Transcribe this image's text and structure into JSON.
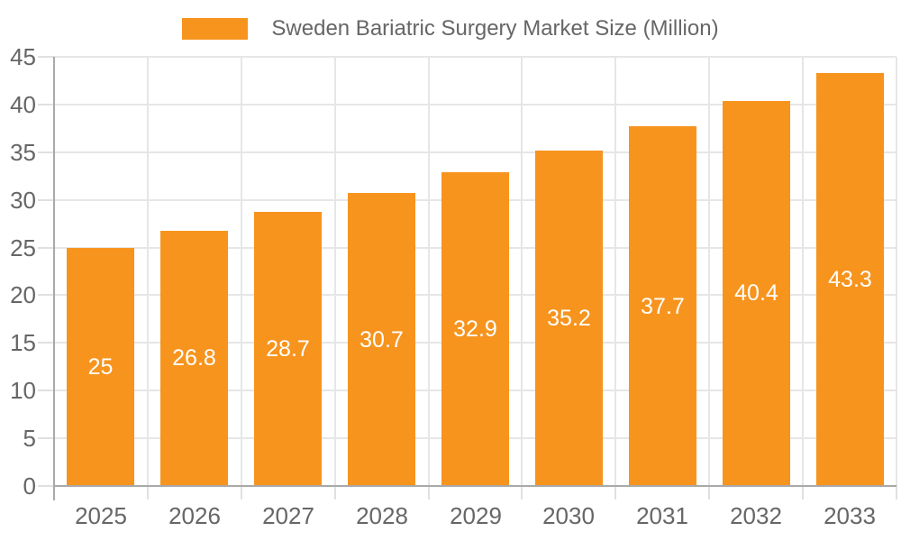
{
  "legend": {
    "label": "Sweden Bariatric Surgery Market Size (Million)"
  },
  "colors": {
    "bar": "#F7941E",
    "grid": "#E6E6E6",
    "tick": "#E0E0E0",
    "axis": "#A9A9A9",
    "axis_label": "#666666",
    "value_label": "#FFFFFF",
    "legend_text": "#666666",
    "background": "#FFFFFF"
  },
  "chart_data": {
    "type": "bar",
    "title": "Sweden Bariatric Surgery Market Size (Million)",
    "categories": [
      "2025",
      "2026",
      "2027",
      "2028",
      "2029",
      "2030",
      "2031",
      "2032",
      "2033"
    ],
    "values": [
      25,
      26.8,
      28.7,
      30.7,
      32.9,
      35.2,
      37.7,
      40.4,
      43.3
    ],
    "value_labels": [
      "25",
      "26.8",
      "28.7",
      "30.7",
      "32.9",
      "35.2",
      "37.7",
      "40.4",
      "43.3"
    ],
    "ytick_labels": [
      "0",
      "5",
      "10",
      "15",
      "20",
      "25",
      "30",
      "35",
      "40",
      "45"
    ],
    "yticks": [
      0,
      5,
      10,
      15,
      20,
      25,
      30,
      35,
      40,
      45
    ],
    "xlabel": "",
    "ylabel": "",
    "ylim": [
      0,
      45
    ],
    "grid": true,
    "legend_position": "top-center",
    "bar_label_position": "center-inside",
    "bar_label_color": "#FFFFFF"
  }
}
